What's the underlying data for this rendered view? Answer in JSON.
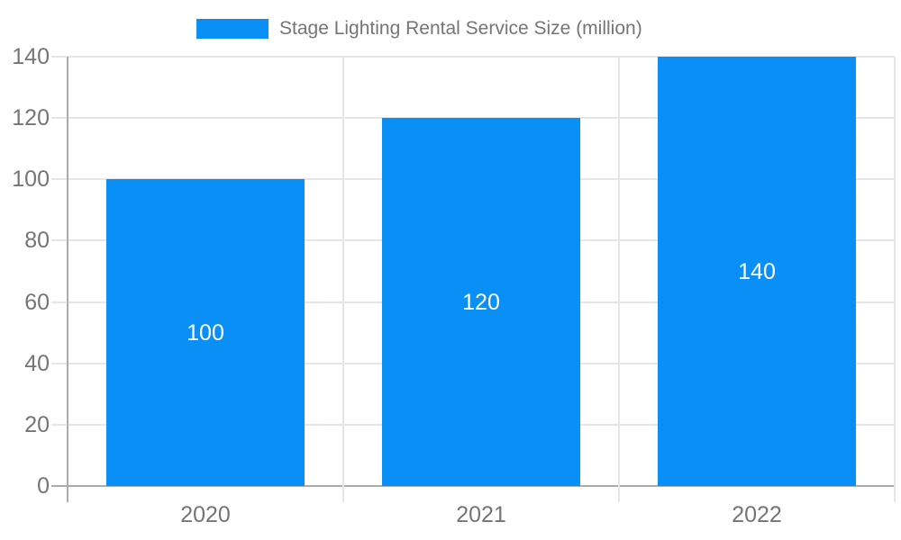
{
  "chart_data": {
    "type": "bar",
    "title": "Stage Lighting Rental Service Size (million)",
    "categories": [
      "2020",
      "2021",
      "2022"
    ],
    "series": [
      {
        "name": "Stage Lighting Rental Service Size (million)",
        "values": [
          100,
          120,
          140
        ]
      }
    ],
    "data_labels": [
      "100",
      "120",
      "140"
    ],
    "y_ticks": [
      0,
      20,
      40,
      60,
      80,
      100,
      120,
      140
    ],
    "ylim": [
      0,
      140
    ],
    "xlabel": "",
    "ylabel": "",
    "grid": true,
    "legend_position": "top-center",
    "colors": {
      "bar": "#0a8ff7",
      "grid_line": "#e6e6e6",
      "axis_line": "#ababab",
      "axis_text": "#757575",
      "data_label_text": "#ffffff",
      "background": "#ffffff"
    }
  }
}
